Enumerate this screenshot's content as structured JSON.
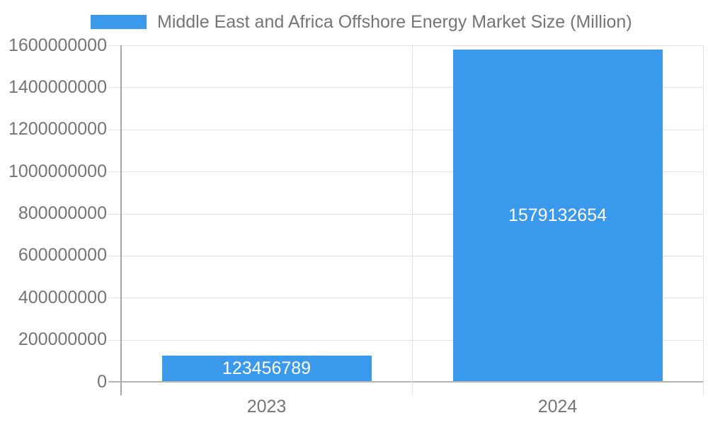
{
  "legend": {
    "label": "Middle East and Africa Offshore Energy Market Size (Million)"
  },
  "chart_data": {
    "type": "bar",
    "title": "Middle East and Africa Offshore Energy Market Size (Million)",
    "categories": [
      "2023",
      "2024"
    ],
    "series": [
      {
        "name": "Middle East and Africa Offshore Energy Market Size (Million)",
        "color": "#3b99ec",
        "values": [
          123456789,
          1579132654
        ]
      }
    ],
    "bar_value_labels": [
      "123456789",
      "1579132654"
    ],
    "xlabel": "",
    "ylabel": "",
    "ylim": [
      0,
      1600000000
    ],
    "yticks": [
      0,
      200000000,
      400000000,
      600000000,
      800000000,
      1000000000,
      1200000000,
      1400000000,
      1600000000
    ],
    "ytick_labels": [
      "0",
      "200000000",
      "400000000",
      "600000000",
      "800000000",
      "1000000000",
      "1200000000",
      "1400000000",
      "1600000000"
    ],
    "grid": true,
    "legend_position": "top",
    "colors": {
      "bar": "#3b99ec",
      "text": "#757575",
      "bar_label_text": "#ffffff",
      "gridline": "#e0e0e0",
      "axis_line": "#a6a6a6",
      "baseline": "#b3b3b3",
      "background": "#ffffff"
    }
  }
}
